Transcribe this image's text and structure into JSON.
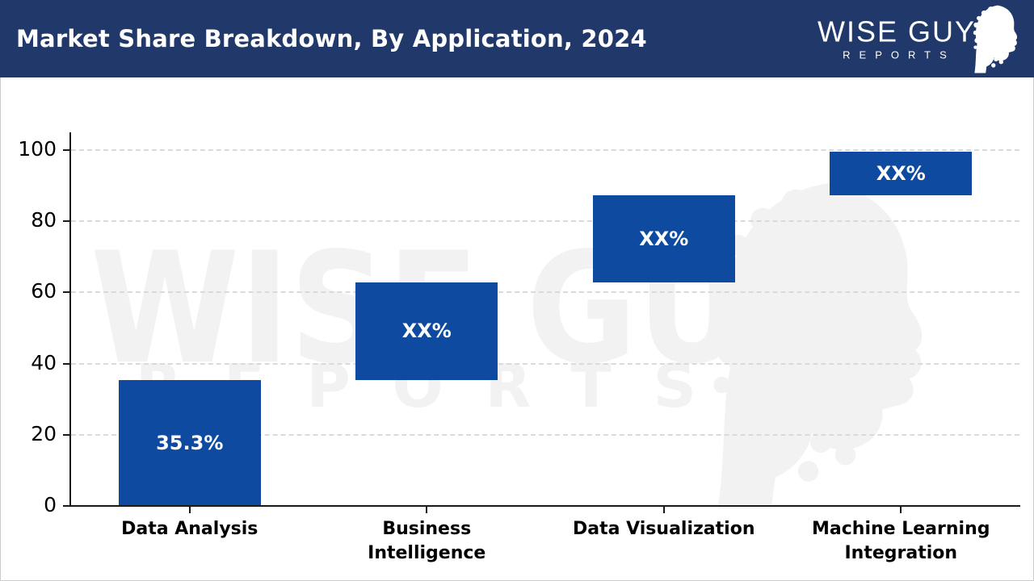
{
  "header": {
    "title": "Market Share Breakdown, By Application, 2024",
    "logo": {
      "line1": "WISE GUY",
      "line2": "REPORTS"
    }
  },
  "watermark": {
    "line1": "WISE GUY",
    "line2": "REPORTS"
  },
  "chart_data": {
    "type": "bar",
    "subtype": "floating-waterfall",
    "title": "Market Share Breakdown, By Application, 2024",
    "categories": [
      "Data Analysis",
      "Business Intelligence",
      "Data Visualization",
      "Machine Learning Integration"
    ],
    "category_display_lines": [
      [
        "Data Analysis"
      ],
      [
        "Business",
        "Intelligence"
      ],
      [
        "Data Visualization"
      ],
      [
        "Machine Learning",
        "Integration"
      ]
    ],
    "bars": [
      {
        "category": "Data Analysis",
        "start": 0,
        "end": 35.3,
        "label": "35.3%"
      },
      {
        "category": "Business Intelligence",
        "start": 35.3,
        "end": 62.9,
        "label": "XX%"
      },
      {
        "category": "Data Visualization",
        "start": 62.9,
        "end": 87.4,
        "label": "XX%"
      },
      {
        "category": "Machine Learning Integration",
        "start": 87.4,
        "end": 99.6,
        "label": "XX%"
      }
    ],
    "ylim": [
      0,
      100
    ],
    "yticks": [
      0,
      20,
      40,
      60,
      80,
      100
    ],
    "xlabel": "",
    "ylabel": "",
    "grid": "horizontal-dashed",
    "legend": "none",
    "colors": {
      "bar": "#0d4aa0",
      "bar_label": "#ffffff",
      "grid": "#dadada",
      "axis": "#1a1a1a",
      "header_bg": "#20386a",
      "watermark": "#f2f2f3"
    }
  }
}
